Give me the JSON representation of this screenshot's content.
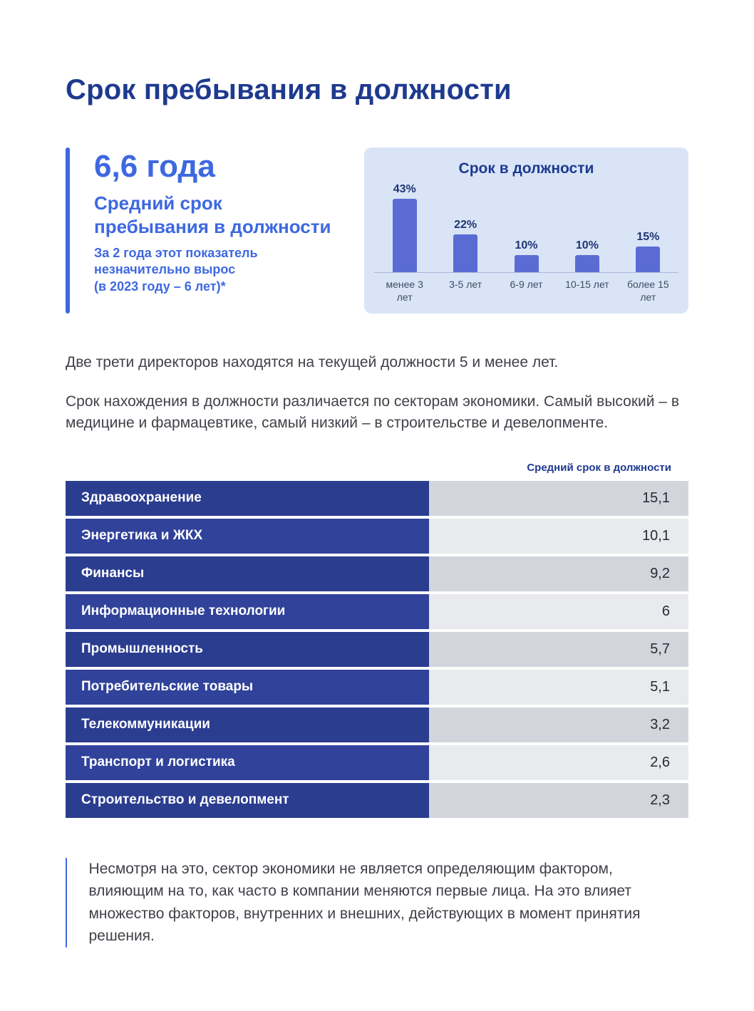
{
  "page": {
    "title": "Срок пребывания в должности"
  },
  "colors": {
    "accent_blue": "#3e68e0",
    "navy": "#1e3a8f",
    "bar_blue": "#5a6cd4",
    "chart_panel_bg": "#d9e5f7",
    "table_row_blue": "#2b3d8f",
    "table_value_gray": "#d2d5dc",
    "table_value_gray_alt": "#e8eaee"
  },
  "stat": {
    "value": "6,6 года",
    "label": "Средний срок\nпребывания в должности",
    "note": "За 2 года этот показатель\nнезначительно вырос\n(в 2023 году – 6 лет)*"
  },
  "chart_data": {
    "type": "bar",
    "title": "Срок в должности",
    "categories": [
      "менее 3 лет",
      "3-5 лет",
      "6-9 лет",
      "10-15 лет",
      "более 15 лет"
    ],
    "category_display": [
      "менее 3\nлет",
      "3-5 лет",
      "6-9 лет",
      "10-15 лет",
      "более 15\nлет"
    ],
    "values": [
      43,
      22,
      10,
      10,
      15
    ],
    "value_labels": [
      "43%",
      "22%",
      "10%",
      "10%",
      "15%"
    ],
    "xlabel": "",
    "ylabel": "",
    "ylim": [
      0,
      50
    ],
    "grid": false,
    "legend": "none"
  },
  "paragraphs": {
    "p1": "Две трети директоров находятся на текущей должности 5 и менее лет.",
    "p2": "Срок нахождения в должности различается по секторам экономики. Самый высокий – в медицине и фармацевтике, самый низкий – в строительстве и девелопменте."
  },
  "table": {
    "header": "Средний срок в должности",
    "rows": [
      {
        "label": "Здравоохранение",
        "value": "15,1"
      },
      {
        "label": "Энергетика и ЖКХ",
        "value": "10,1"
      },
      {
        "label": "Финансы",
        "value": "9,2"
      },
      {
        "label": "Информационные технологии",
        "value": "6"
      },
      {
        "label": "Промышленность",
        "value": "5,7"
      },
      {
        "label": "Потребительские товары",
        "value": "5,1"
      },
      {
        "label": "Телекоммуникации",
        "value": "3,2"
      },
      {
        "label": "Транспорт и логистика",
        "value": "2,6"
      },
      {
        "label": "Строительство и девелопмент",
        "value": "2,3"
      }
    ]
  },
  "quote": {
    "text": "Несмотря на это, сектор экономики не является определяющим фактором, влияющим на то, как часто в компании меняются первые лица. На это влияет множество факторов, внутренних и внешних, действующих в момент принятия решения."
  }
}
